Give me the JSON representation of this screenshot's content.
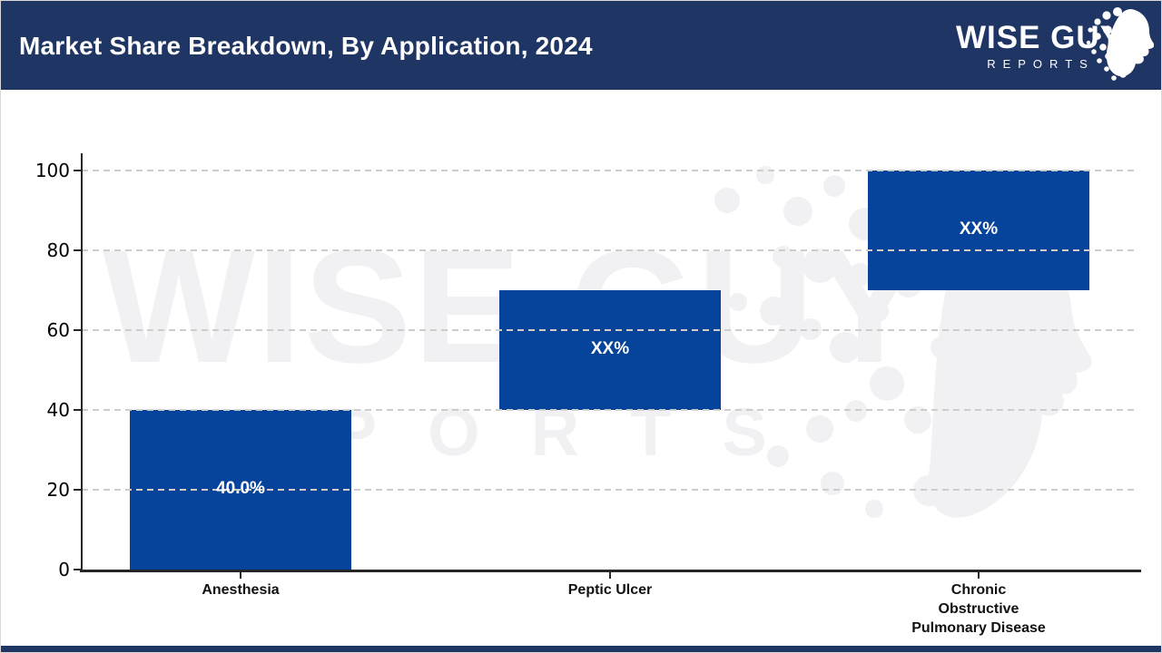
{
  "header": {
    "title": "Market Share Breakdown, By Application, 2024",
    "logo_line1": "WISE GUY",
    "logo_line2": "REPORTS",
    "bg_color": "#1f3564"
  },
  "watermark": {
    "line1": "WISE GUY",
    "line2": "REPORTS",
    "color": "#f1f1f3"
  },
  "chart_data": {
    "type": "bar",
    "subtype": "floating-waterfall",
    "title": "Market Share Breakdown, By Application, 2024",
    "categories": [
      "Anesthesia",
      "Peptic Ulcer",
      "Chronic Obstructive Pulmonary Disease"
    ],
    "category_display_lines": [
      [
        "Anesthesia"
      ],
      [
        "Peptic Ulcer"
      ],
      [
        "Chronic",
        "Obstructive",
        "Pulmonary Disease"
      ]
    ],
    "bars": [
      {
        "category": "Anesthesia",
        "base": 0,
        "top": 40,
        "label": "40.0%"
      },
      {
        "category": "Peptic Ulcer",
        "base": 40,
        "top": 70,
        "label": "XX%"
      },
      {
        "category": "Chronic Obstructive Pulmonary Disease",
        "base": 70,
        "top": 100,
        "label": "XX%"
      }
    ],
    "xlabel": "",
    "ylabel": "",
    "ylim": [
      0,
      100
    ],
    "yticks": [
      0,
      20,
      40,
      60,
      80,
      100
    ],
    "grid": "horizontal-dashed",
    "gridline_color": "#cdcdcd",
    "bar_color": "#06439b",
    "bar_label_color": "#ffffff",
    "legend": "none"
  }
}
